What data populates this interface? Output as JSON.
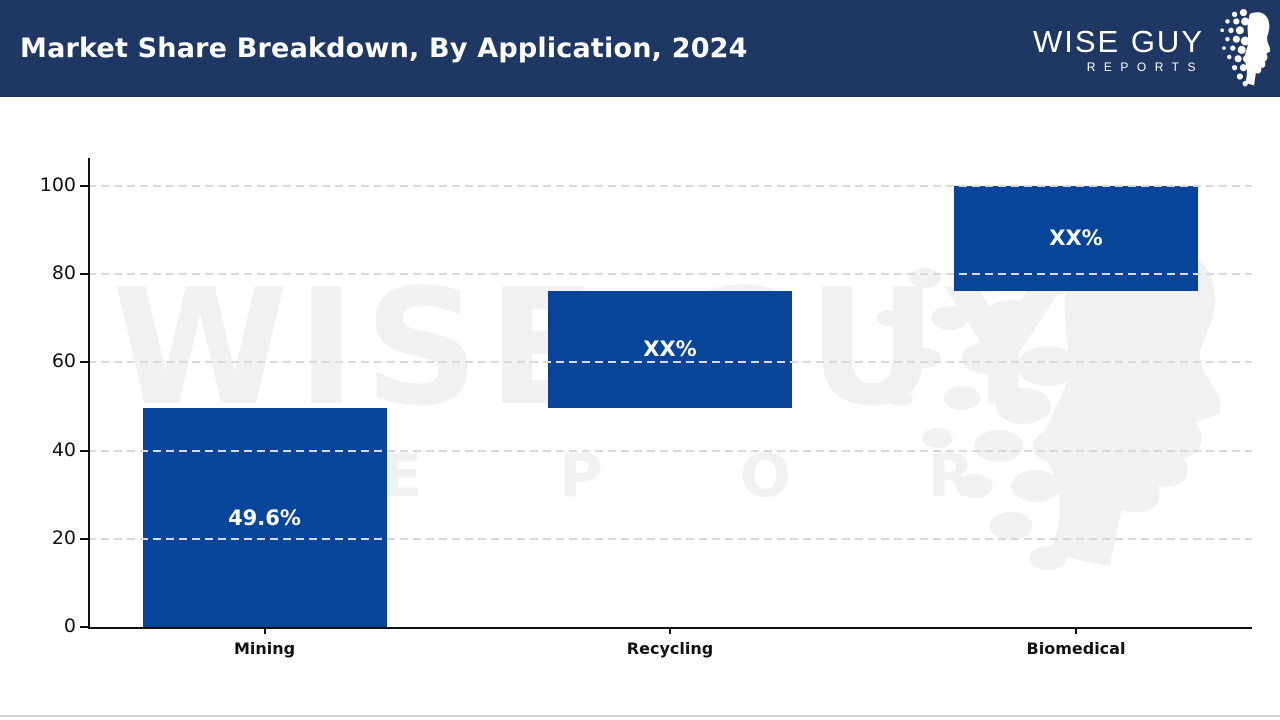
{
  "header": {
    "title": "Market Share Breakdown, By Application, 2024",
    "logo": {
      "line1": "WISE GUY",
      "line2": "REPORTS"
    }
  },
  "watermark": {
    "line1": "WISE GUY",
    "line2": "R E P O R T S"
  },
  "chart_data": {
    "type": "bar",
    "subtype": "waterfall",
    "title": "Market Share Breakdown, By Application, 2024",
    "categories": [
      "Mining",
      "Recycling",
      "Biomedical"
    ],
    "bars": [
      {
        "category": "Mining",
        "start": 0,
        "end": 49.6,
        "label": "49.6%"
      },
      {
        "category": "Recycling",
        "start": 49.6,
        "end": 76.3,
        "label": "XX%"
      },
      {
        "category": "Biomedical",
        "start": 76.3,
        "end": 100,
        "label": "XX%"
      }
    ],
    "ylim": [
      0,
      100
    ],
    "yticks": [
      0,
      20,
      40,
      60,
      80,
      100
    ],
    "xlabel": "",
    "ylabel": "",
    "grid": "dashed horizontal, drawn over bars",
    "legend": "none",
    "bar_color": "#07459A",
    "bar_label_color": "#ffffff"
  },
  "colors": {
    "header_bg": "#1f3763",
    "bar": "#07459A",
    "grid": "#d9d9d9",
    "axis": "#111111",
    "watermark": "#f1f1f1",
    "title_text": "#ffffff"
  }
}
